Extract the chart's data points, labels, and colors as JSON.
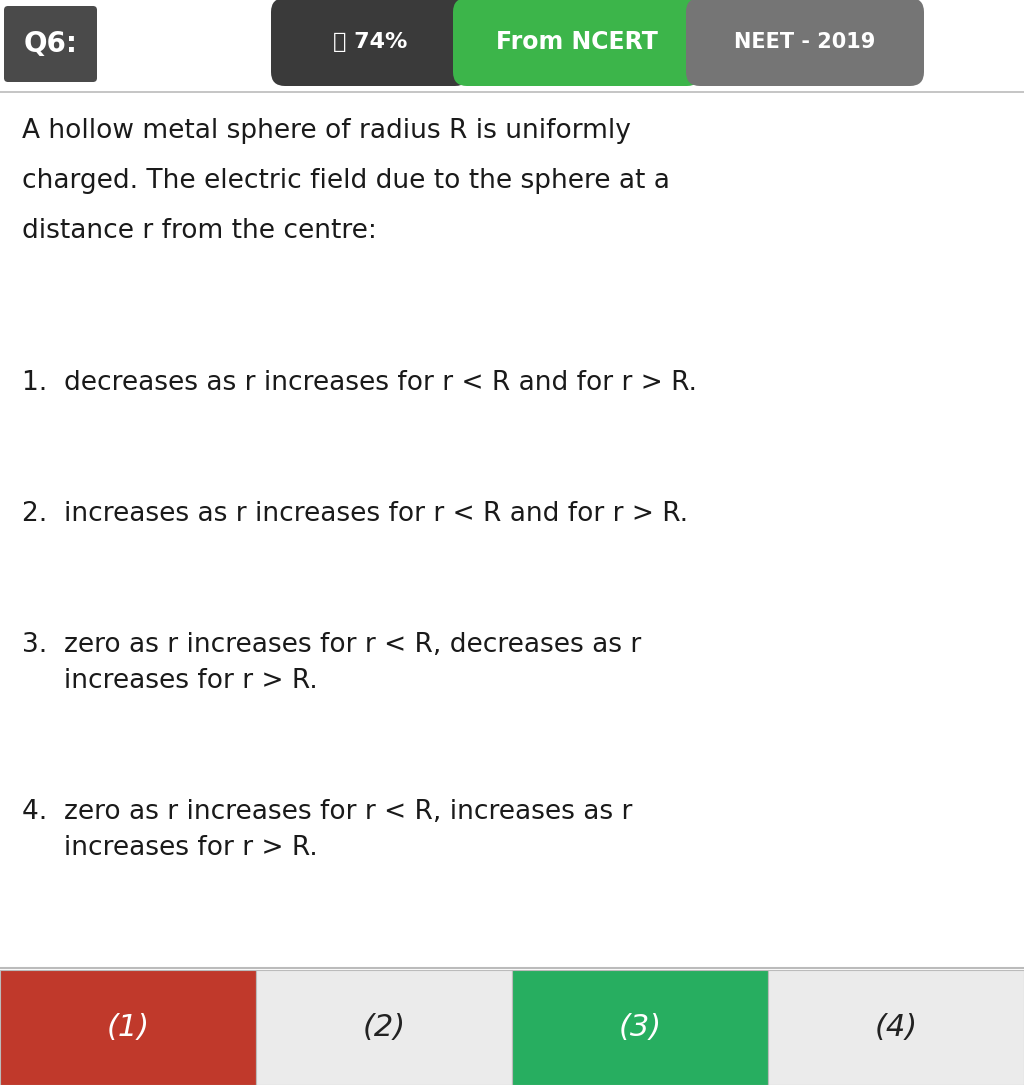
{
  "bg_color": "#ffffff",
  "header": {
    "q_label": "Q6:",
    "q_label_bg": "#4a4a4a",
    "q_label_color": "#ffffff",
    "like_badge_bg": "#3a3a3a",
    "like_badge_color": "#ffffff",
    "ncert_badge_text": "From NCERT",
    "ncert_badge_bg": "#3cb54a",
    "ncert_badge_color": "#ffffff",
    "neet_badge_text": "NEET - 2019",
    "neet_badge_bg": "#757575",
    "neet_badge_color": "#ffffff"
  },
  "question_lines": [
    "A hollow metal sphere of radius R is uniformly",
    "charged. The electric field due to the sphere at a",
    "distance r from the centre:"
  ],
  "option_blocks": [
    [
      "1.  decreases as r increases for r < R and for r > R."
    ],
    [
      "2.  increases as r increases for r < R and for r > R."
    ],
    [
      "3.  zero as r increases for r < R, decreases as r",
      "     increases for r > R."
    ],
    [
      "4.  zero as r increases for r < R, increases as r",
      "     increases for r > R."
    ]
  ],
  "answer_buttons": [
    {
      "label": "(1)",
      "bg": "#c0392b",
      "fg": "#ffffff"
    },
    {
      "label": "(2)",
      "bg": "#ebebeb",
      "fg": "#222222"
    },
    {
      "label": "(3)",
      "bg": "#27ae60",
      "fg": "#ffffff"
    },
    {
      "label": "(4)",
      "bg": "#ebebeb",
      "fg": "#222222"
    }
  ],
  "text_color": "#1a1a1a",
  "separator_color": "#bbbbbb"
}
